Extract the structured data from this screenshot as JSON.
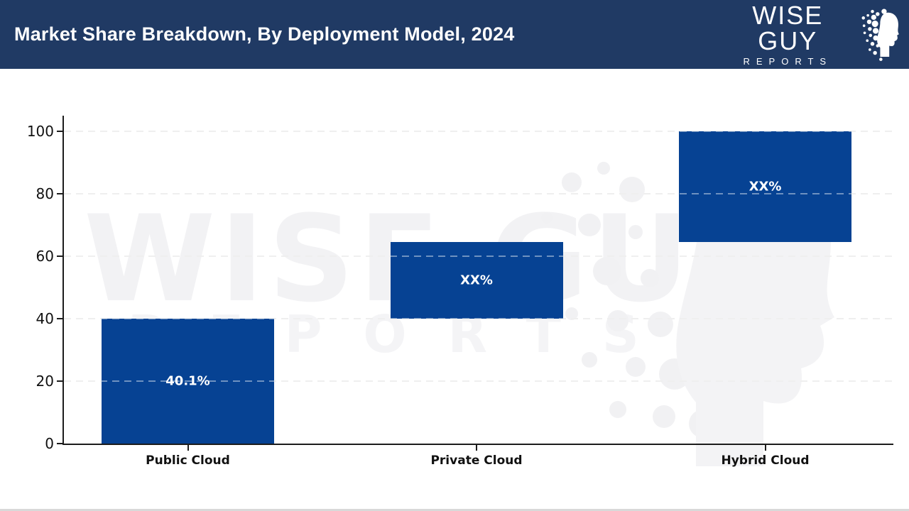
{
  "header": {
    "title": "Market Share Breakdown, By Deployment Model, 2024",
    "logo": {
      "line1": "WISE GUY",
      "line2": "REPORTS"
    }
  },
  "watermark": {
    "line1": "WISE GUY",
    "line2": "REPORTS"
  },
  "colors": {
    "header_bg": "#203a64",
    "bar_fill": "#064293",
    "gridline": "#e3e3e3",
    "axis": "#1c1c1c",
    "title_text": "#ffffff",
    "bar_label_text": "#ffffff"
  },
  "chart_data": {
    "type": "bar",
    "subtype": "floating-stacked-waterfall",
    "title": "Market Share Breakdown, By Deployment Model, 2024",
    "xlabel": "",
    "ylabel": "",
    "ylim": [
      0,
      100
    ],
    "yticks": [
      0,
      20,
      40,
      60,
      80,
      100
    ],
    "grid": "dashed horizontal",
    "legend": "none",
    "categories": [
      "Public Cloud",
      "Private Cloud",
      "Hybrid Cloud"
    ],
    "bars": [
      {
        "category": "Public Cloud",
        "start": 0,
        "end": 40.1,
        "label": "40.1%"
      },
      {
        "category": "Private Cloud",
        "start": 40,
        "end": 64.5,
        "label": "XX%"
      },
      {
        "category": "Hybrid Cloud",
        "start": 64.5,
        "end": 100,
        "label": "XX%"
      }
    ]
  }
}
